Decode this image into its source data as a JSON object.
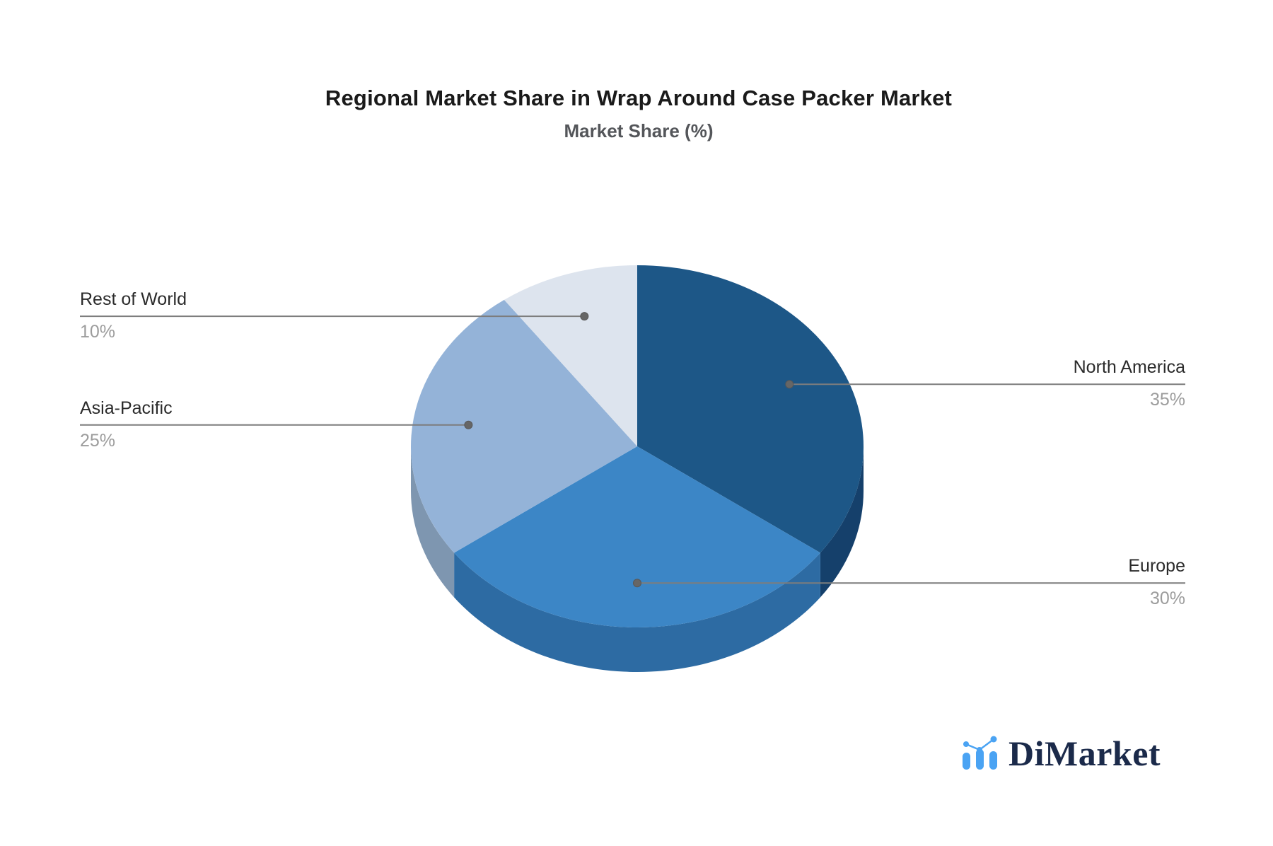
{
  "title": "Regional Market Share in Wrap Around Case Packer Market",
  "subtitle": "Market Share (%)",
  "chart_data": {
    "type": "pie",
    "title": "Regional Market Share in Wrap Around Case Packer Market",
    "subtitle": "Market Share (%)",
    "unit": "%",
    "labels": [
      "North America",
      "Europe",
      "Asia-Pacific",
      "Rest of World"
    ],
    "values": [
      35,
      30,
      25,
      10
    ],
    "values_display": [
      "35%",
      "30%",
      "25%",
      "10%"
    ],
    "start_angle": "12 o'clock",
    "direction": "clockwise",
    "style": "3d-pie",
    "colors_top": [
      "#1d5787",
      "#3c86c6",
      "#94b3d8",
      "#dde4ee"
    ],
    "colors_side": [
      "#15406b",
      "#2d6ba3",
      "#7e96b0",
      "#c9d2e0"
    ],
    "leader_line_color": "#7d7d7d",
    "leader_dot_color": "#666666",
    "label_text_color": "#2b2b2b",
    "value_text_color": "#9c9c9c",
    "legend": "none"
  },
  "branding": {
    "name": "DiMarket",
    "icon": "bar-chart-with-trend-dots",
    "icon_color": "#4aa3f3",
    "text_color": "#1b2a4a"
  }
}
